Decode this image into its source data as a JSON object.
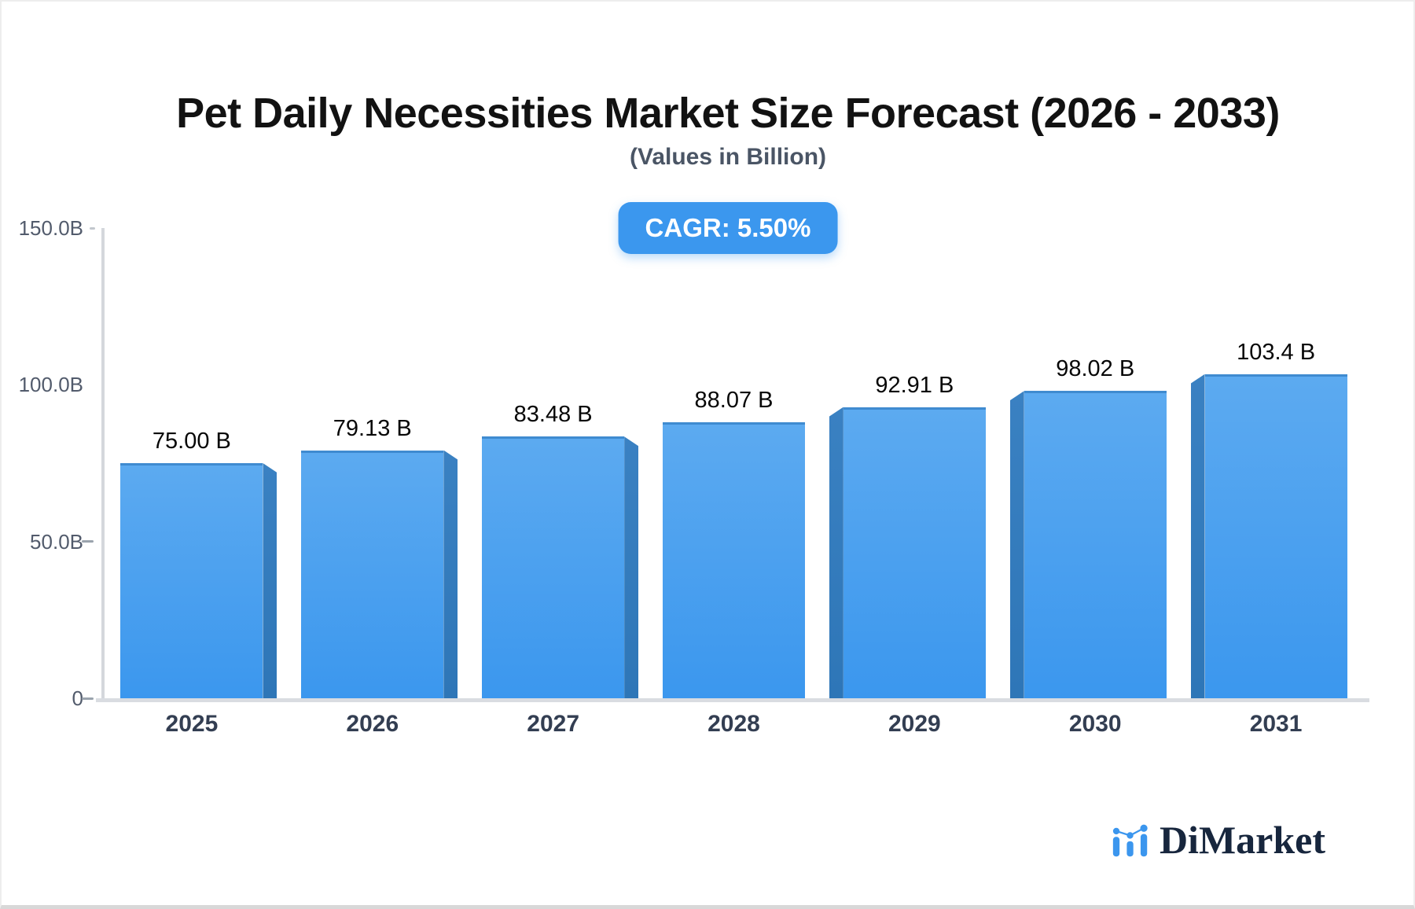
{
  "chart_data": {
    "type": "bar",
    "title": "Pet Daily Necessities Market Size Forecast (2026 - 2033)",
    "subtitle": "(Values in Billion)",
    "cagr_badge": "CAGR: 5.50%",
    "categories": [
      "2025",
      "2026",
      "2027",
      "2028",
      "2029",
      "2030",
      "2031"
    ],
    "values": [
      75.0,
      79.13,
      83.48,
      88.07,
      92.91,
      98.02,
      103.4
    ],
    "value_labels": [
      "75.00 B",
      "79.13 B",
      "83.48 B",
      "88.07 B",
      "92.91 B",
      "98.02 B",
      "103.4 B"
    ],
    "xlabel": "",
    "ylabel": "",
    "ylim": [
      0,
      150
    ],
    "y_ticks": [
      {
        "label": "150.0B",
        "value": 150,
        "dash": "small"
      },
      {
        "label": "100.0B",
        "value": 100,
        "dash": "none"
      },
      {
        "label": "50.0B",
        "value": 50,
        "dash": "full"
      },
      {
        "label": "0",
        "value": 0,
        "dash": "full"
      }
    ],
    "grid": "off",
    "legend": "none",
    "bar_3d_side": [
      "right",
      "right",
      "right",
      "none",
      "left",
      "left",
      "left"
    ]
  },
  "footer": {
    "brand": "DiMarket"
  },
  "colors": {
    "title": "#121212",
    "subtitle": "#4a5565",
    "badge_bg": "#3b97ee",
    "badge_text": "#ffffff",
    "face_top": "#5caaf0",
    "face_bottom": "#3b97ee",
    "face_border": "#3f8bd0",
    "side": "#2e76b7",
    "side_top": "#3a81c2",
    "axis": "#d4d7dc",
    "baseline": "#d9dce1",
    "tick": "#9aa3ad",
    "y_label": "#525b6c",
    "x_label": "#333e52",
    "value_label": "#070707",
    "logo_text": "#17263d",
    "logo_icon": "#3b96ee"
  }
}
